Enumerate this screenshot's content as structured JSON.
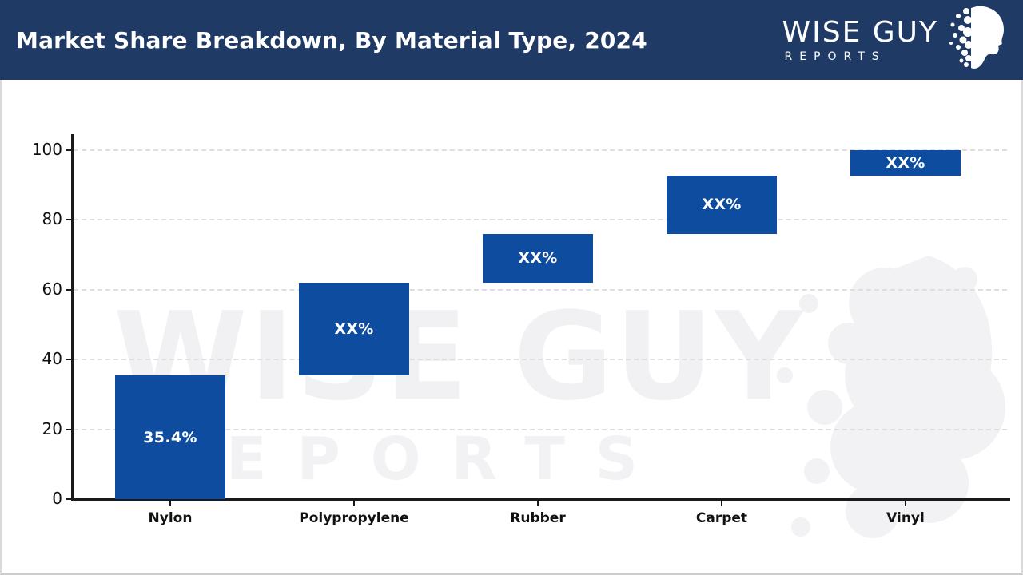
{
  "header": {
    "title": "Market Share Breakdown, By Material Type, 2024",
    "logo": {
      "line1": "WISE GUY",
      "line2": "REPORTS"
    }
  },
  "watermark": {
    "line1": "WISE GUY",
    "line2": "REPORTS"
  },
  "colors": {
    "header_bg": "#203a66",
    "bar": "#0d4c9e",
    "grid": "#dedede",
    "axis": "#1a1a1a",
    "bar_label": "#ffffff",
    "watermark": "#f1f1f3"
  },
  "chart_data": {
    "type": "bar",
    "subtype": "waterfall-floating-bars",
    "title": "Market Share Breakdown, By Material Type, 2024",
    "categories": [
      "Nylon",
      "Polypropylene",
      "Rubber",
      "Carpet",
      "Vinyl"
    ],
    "segments": [
      {
        "category": "Nylon",
        "start": 0,
        "end": 35.4,
        "label": "35.4%"
      },
      {
        "category": "Polypropylene",
        "start": 35.4,
        "end": 62,
        "label": "XX%"
      },
      {
        "category": "Rubber",
        "start": 62,
        "end": 76,
        "label": "XX%"
      },
      {
        "category": "Carpet",
        "start": 76,
        "end": 92.5,
        "label": "XX%"
      },
      {
        "category": "Vinyl",
        "start": 92.5,
        "end": 100,
        "label": "XX%"
      }
    ],
    "y_ticks": [
      0,
      20,
      40,
      60,
      80,
      100
    ],
    "ylim": [
      0,
      105
    ],
    "xlabel": "",
    "ylabel": "",
    "grid": "horizontal-dashed",
    "legend": "none"
  }
}
